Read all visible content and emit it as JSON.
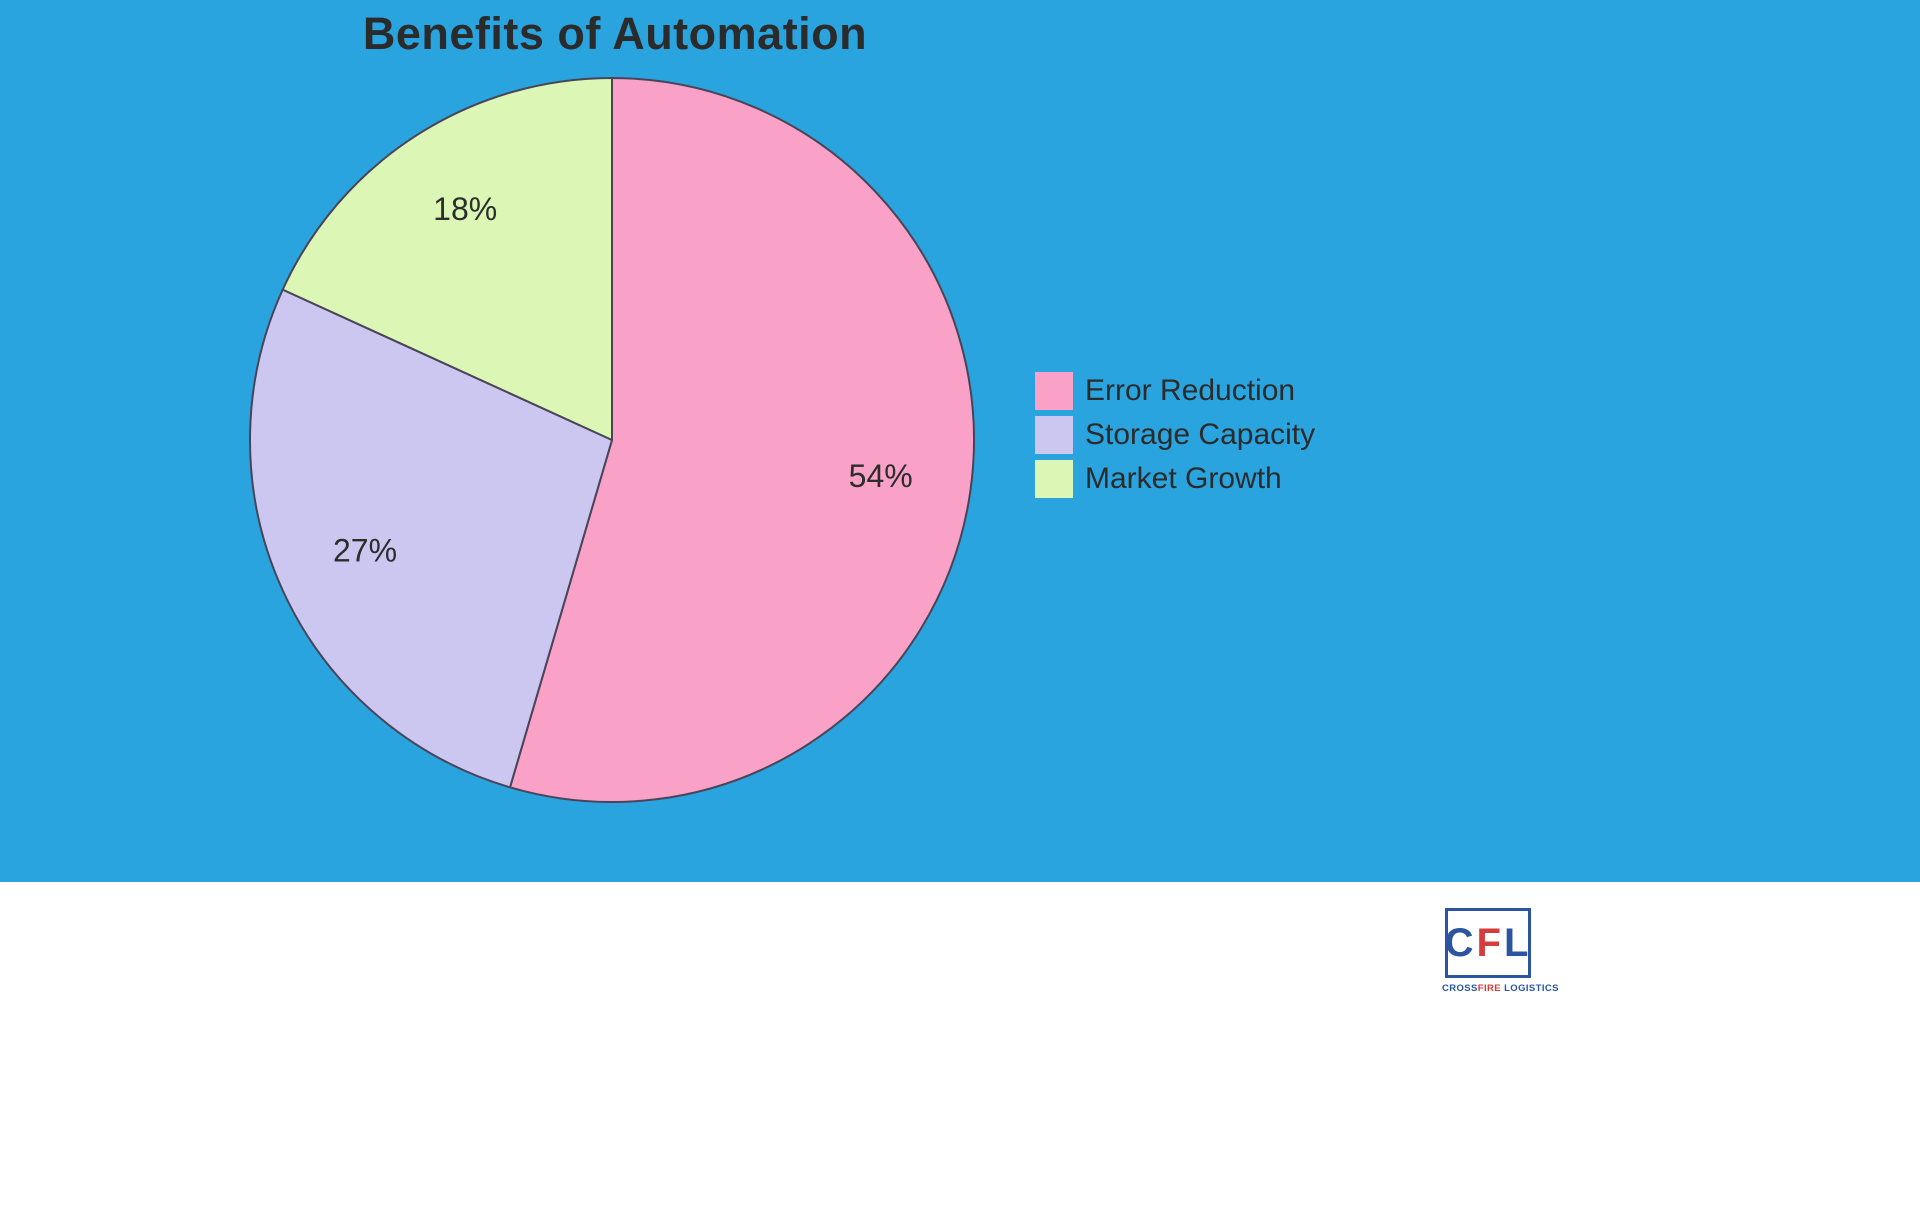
{
  "chart_data": {
    "type": "pie",
    "title": "Benefits of Automation",
    "labels": [
      "Error Reduction",
      "Storage Capacity",
      "Market Growth"
    ],
    "values": [
      54,
      27,
      18
    ],
    "display_labels": [
      "54%",
      "27%",
      "18%"
    ],
    "colors": [
      "#F9A1C6",
      "#CBC7F1",
      "#DCF7B5"
    ],
    "slice_stroke": "#4A4458",
    "background": "#29A4DE",
    "legend_position": "right",
    "start_angle": "top",
    "direction": "clockwise",
    "label_radius_fraction": 0.75
  },
  "legend": {
    "items": [
      {
        "label": "Error Reduction",
        "color": "#F9A1C6"
      },
      {
        "label": "Storage Capacity",
        "color": "#CBC7F1"
      },
      {
        "label": "Market Growth",
        "color": "#DCF7B5"
      }
    ]
  },
  "footer": {
    "logo": {
      "letters": [
        {
          "text": "C",
          "color": "#2B55A0"
        },
        {
          "text": "F",
          "color": "#D63C3C"
        },
        {
          "text": "L",
          "color": "#2B55A0"
        }
      ],
      "subtext_parts": [
        {
          "text": "CROSS",
          "color": "#2B55A0"
        },
        {
          "text": "FIRE",
          "color": "#D63C3C"
        },
        {
          "text": " LOGISTICS",
          "color": "#2B55A0"
        }
      ]
    }
  }
}
